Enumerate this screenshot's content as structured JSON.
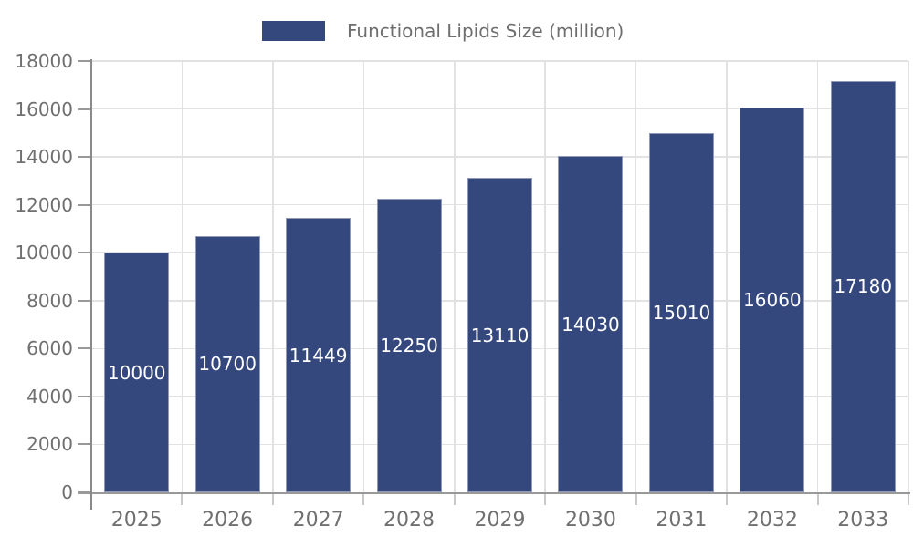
{
  "chart_data": {
    "type": "bar",
    "title": "",
    "legend_label": "Functional Lipids Size (million)",
    "legend_position": "top-center",
    "categories": [
      "2025",
      "2026",
      "2027",
      "2028",
      "2029",
      "2030",
      "2031",
      "2032",
      "2033"
    ],
    "values": [
      10000,
      10700,
      11449,
      12250,
      13110,
      14030,
      15010,
      16060,
      17180
    ],
    "xlabel": "",
    "ylabel": "",
    "ylim": [
      0,
      18000
    ],
    "ytick_step": 2000,
    "yticks": [
      "0",
      "2000",
      "4000",
      "6000",
      "8000",
      "10000",
      "12000",
      "14000",
      "16000",
      "18000"
    ],
    "grid": "on",
    "value_labels_position": "inside-center"
  },
  "colors": {
    "bar_fill": "#35487E",
    "bar_border": "rgba(255,255,255,0.45)",
    "value_label_text": "#FFFFFF",
    "axis_text": "#707070",
    "legend_text": "#6E6E6E",
    "gridline": "#E2E2E2",
    "axis_line": "#999999",
    "boundary_tick": "#C9C9C9",
    "background": "#FFFFFF"
  }
}
